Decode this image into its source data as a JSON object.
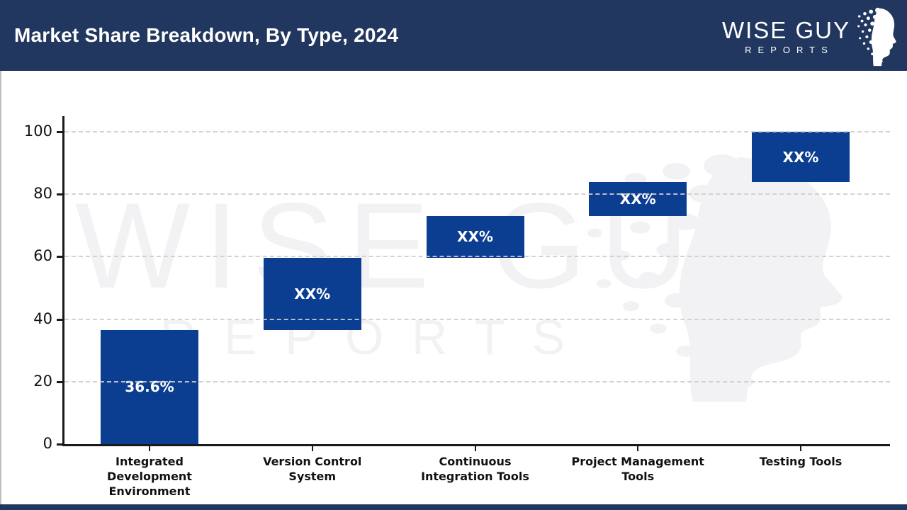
{
  "header": {
    "title": "Market Share Breakdown, By Type, 2024",
    "bg_color": "#22375F",
    "logo": {
      "wordmark": "WISE GUY",
      "subtitle": "REPORTS"
    }
  },
  "watermark": {
    "line1": "WISE GUY",
    "line2": "R E P O R T S",
    "color": "#f2f2f4"
  },
  "chart_data": {
    "type": "bar",
    "subtype": "waterfall",
    "title": "Market Share Breakdown, By Type, 2024",
    "categories": [
      "Integrated Development Environment",
      "Version Control System",
      "Continuous Integration Tools",
      "Project Management Tools",
      "Testing Tools"
    ],
    "segments": [
      {
        "category": "Integrated Development Environment",
        "lines": [
          "Integrated",
          "Development",
          "Environment"
        ],
        "start": 0,
        "end": 36.6,
        "label": "36.6%"
      },
      {
        "category": "Version Control System",
        "lines": [
          "Version Control",
          "System"
        ],
        "start": 36.6,
        "end": 59.6,
        "label": "XX%"
      },
      {
        "category": "Continuous Integration Tools",
        "lines": [
          "Continuous",
          "Integration Tools"
        ],
        "start": 59.6,
        "end": 73.1,
        "label": "XX%"
      },
      {
        "category": "Project Management Tools",
        "lines": [
          "Project Management",
          "Tools"
        ],
        "start": 73.1,
        "end": 83.8,
        "label": "XX%"
      },
      {
        "category": "Testing Tools",
        "lines": [
          "Testing Tools"
        ],
        "start": 83.8,
        "end": 100,
        "label": "XX%"
      }
    ],
    "y_ticks": [
      0,
      20,
      40,
      60,
      80,
      100
    ],
    "ylim": [
      0,
      105
    ],
    "xlabel": "",
    "ylabel": "",
    "grid": true,
    "legend": false,
    "bar_color": "#0B3D91",
    "bar_label_color": "#ffffff",
    "grid_color": "#d8d8d8",
    "axis_color": "#1a1a1a"
  }
}
